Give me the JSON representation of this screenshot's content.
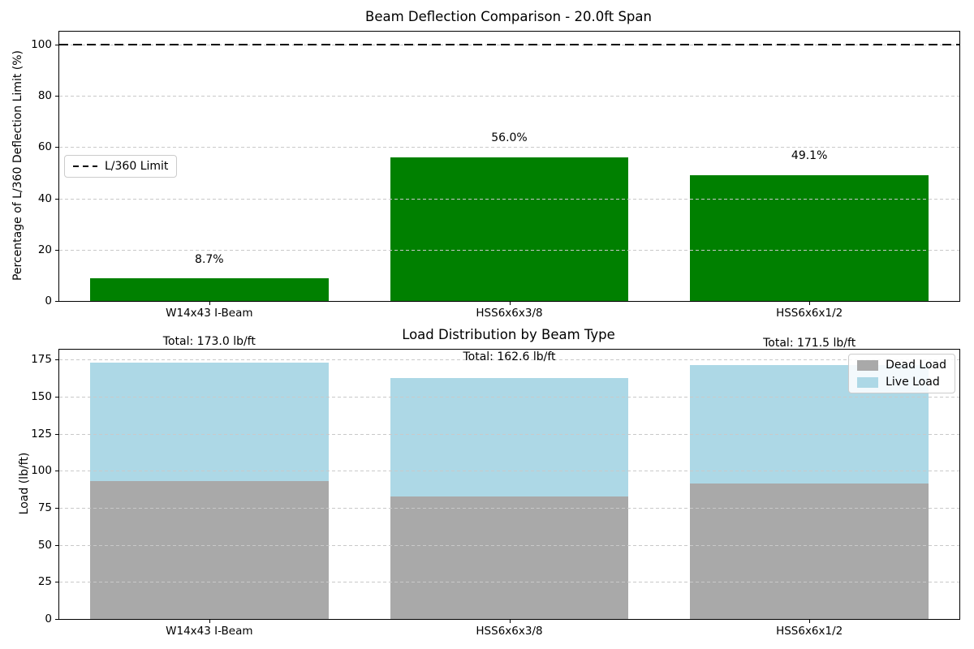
{
  "figure": {
    "background": "#ffffff"
  },
  "chart_data": [
    {
      "type": "bar",
      "title": "Beam Deflection Comparison - 20.0ft Span",
      "ylabel": "Percentage of L/360 Deflection Limit (%)",
      "xlabel": "",
      "categories": [
        "W14x43 I-Beam",
        "HSS6x6x3/8",
        "HSS6x6x1/2"
      ],
      "values": [
        8.7,
        56.0,
        49.1
      ],
      "bar_labels": [
        "8.7%",
        "56.0%",
        "49.1%"
      ],
      "bar_color": "#008000",
      "yticks": [
        0,
        20,
        40,
        60,
        80,
        100
      ],
      "ylim": [
        0,
        105
      ],
      "grid": true,
      "label_offset": 5,
      "limit_line": {
        "value": 100,
        "color": "#000000",
        "style": "dashed"
      },
      "legend": {
        "position": "center-left",
        "entries": [
          {
            "label": "L/360 Limit",
            "swatch": "dashed-line",
            "color": "#000000"
          }
        ]
      }
    },
    {
      "type": "stacked-bar",
      "title": "Load Distribution by Beam Type",
      "ylabel": "Load (lb/ft)",
      "xlabel": "",
      "categories": [
        "W14x43 I-Beam",
        "HSS6x6x3/8",
        "HSS6x6x1/2"
      ],
      "series": [
        {
          "name": "Dead Load",
          "color": "#a9a9a9",
          "values": [
            93.0,
            82.6,
            91.5
          ]
        },
        {
          "name": "Live Load",
          "color": "#add8e6",
          "values": [
            80.0,
            80.0,
            80.0
          ]
        }
      ],
      "totals": [
        173.0,
        162.6,
        171.5
      ],
      "total_labels": [
        "Total: 173.0 lb/ft",
        "Total: 162.6 lb/ft",
        "Total: 171.5 lb/ft"
      ],
      "yticks": [
        0,
        25,
        50,
        75,
        100,
        125,
        150,
        175
      ],
      "ylim": [
        0,
        181.65
      ],
      "grid": true,
      "label_offset": 10,
      "legend": {
        "position": "top-right",
        "entries": [
          {
            "label": "Dead Load",
            "swatch": "patch",
            "color": "#a9a9a9"
          },
          {
            "label": "Live Load",
            "swatch": "patch",
            "color": "#add8e6"
          }
        ]
      }
    }
  ]
}
